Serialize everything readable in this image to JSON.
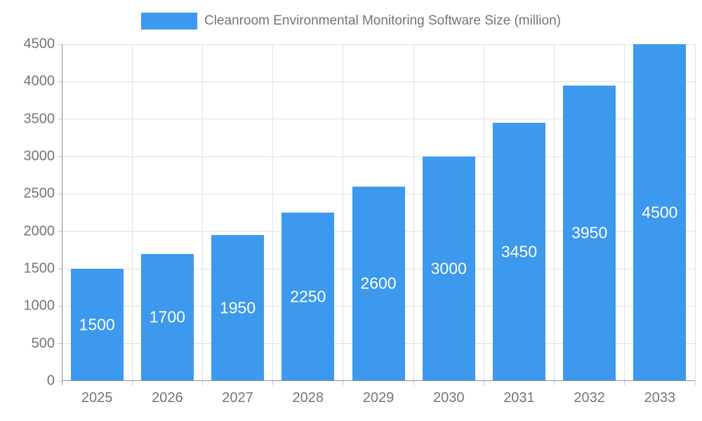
{
  "chart_data": {
    "type": "bar",
    "title": "Cleanroom Environmental Monitoring Software Size (million)",
    "legend": [
      "Cleanroom Environmental Monitoring Software Size (million)"
    ],
    "legend_position": "top-center",
    "categories": [
      "2025",
      "2026",
      "2027",
      "2028",
      "2029",
      "2030",
      "2031",
      "2032",
      "2033"
    ],
    "values": [
      1500,
      1700,
      1950,
      2250,
      2600,
      3000,
      3450,
      3950,
      4500
    ],
    "value_labels": [
      "1500",
      "1700",
      "1950",
      "2250",
      "2600",
      "3000",
      "3450",
      "3950",
      "4500"
    ],
    "xlabel": "",
    "ylabel": "",
    "ylim": [
      0,
      4500
    ],
    "ytick_step": 500,
    "ytick_labels": [
      "0",
      "500",
      "1000",
      "1500",
      "2000",
      "2500",
      "3000",
      "3500",
      "4000",
      "4500"
    ],
    "grid": "on",
    "bar_color": "#3c99ed",
    "value_label_color": "#ffffff",
    "axis_label_color": "#757575"
  }
}
